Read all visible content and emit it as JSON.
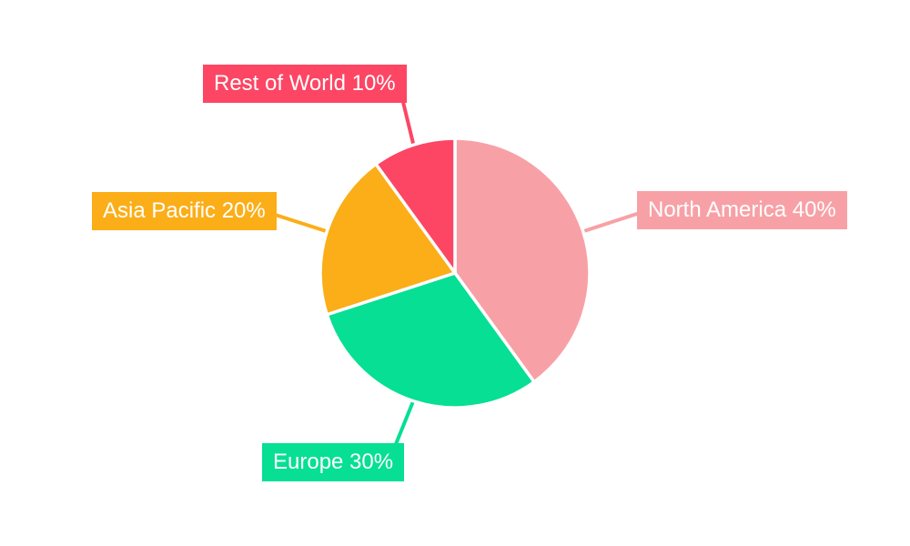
{
  "page": {
    "background_color": "#FFFFFF"
  },
  "chart_data": {
    "type": "pie",
    "unit": "%",
    "total": 100,
    "start_angle_deg": 0,
    "direction": "clockwise",
    "legend_position": "none",
    "label_style": "callout-boxes",
    "label_text_color": "#FFFFFF",
    "slice_border_color": "#FFFFFF",
    "slices": [
      {
        "label": "North America",
        "value": 40,
        "callout": "North America 40%",
        "color": "#F7A1A6"
      },
      {
        "label": "Europe",
        "value": 30,
        "callout": "Europe 30%",
        "color": "#06DF94"
      },
      {
        "label": "Asia Pacific",
        "value": 20,
        "callout": "Asia Pacific 20%",
        "color": "#FBAE18"
      },
      {
        "label": "Rest of World",
        "value": 10,
        "callout": "Rest of World 10%",
        "color": "#FC4664"
      }
    ]
  }
}
